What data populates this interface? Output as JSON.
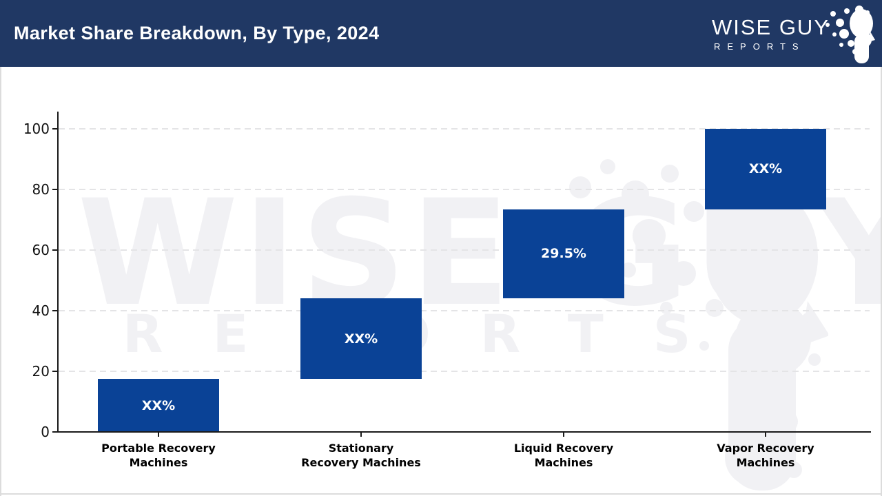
{
  "header": {
    "title": "Market Share Breakdown, By Type, 2024",
    "logo": {
      "line1": "WISE GUY",
      "line2": "REPORTS"
    }
  },
  "watermark": {
    "line1": "WISE GUY",
    "line2": "REPORTS"
  },
  "chart_data": {
    "type": "bar",
    "subtype": "floating-waterfall",
    "title": "Market Share Breakdown, By Type, 2024",
    "categories": [
      [
        "Portable Recovery",
        "Machines"
      ],
      [
        "Stationary",
        "Recovery Machines"
      ],
      [
        "Liquid Recovery",
        "Machines"
      ],
      [
        "Vapor Recovery",
        "Machines"
      ]
    ],
    "segments": [
      {
        "start": 0,
        "end": 17.5,
        "height": 17.5,
        "label": "XX%"
      },
      {
        "start": 17.5,
        "end": 44,
        "height": 26.5,
        "label": "XX%"
      },
      {
        "start": 44,
        "end": 73.5,
        "height": 29.5,
        "label": "29.5%"
      },
      {
        "start": 73.5,
        "end": 100,
        "height": 26.5,
        "label": "XX%"
      }
    ],
    "yticks": [
      0,
      20,
      40,
      60,
      80,
      100
    ],
    "ylim": [
      0,
      105
    ],
    "grid": "horizontal-dashed",
    "legend": "none",
    "bar_color": "#0a4296",
    "bar_label_color": "#ffffff",
    "axis_color": "#1a1a1a",
    "grid_color": "#e4e4e6"
  },
  "colors": {
    "header_bg": "#203864",
    "page_bg": "#ffffff",
    "edge_border": "#dcdcdc",
    "watermark": "#f1f1f4"
  }
}
